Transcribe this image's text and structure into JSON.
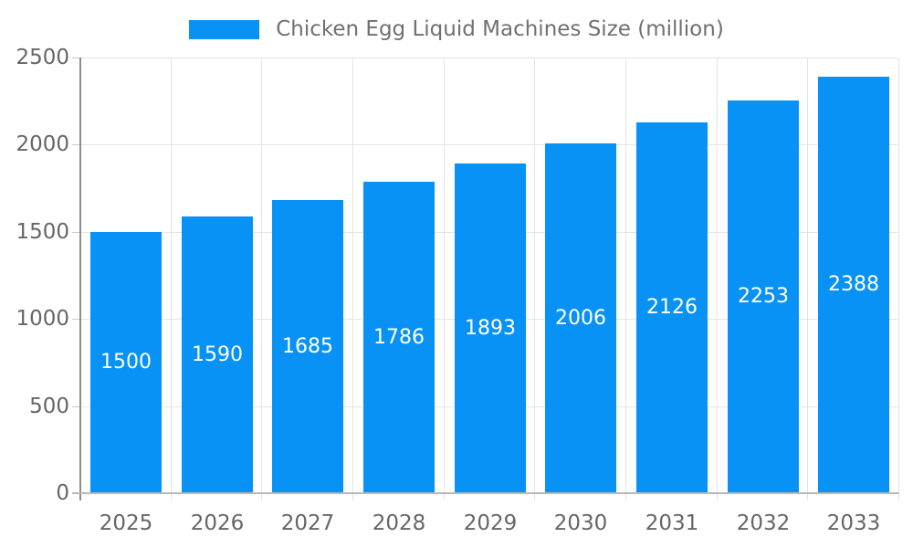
{
  "chart_data": {
    "type": "bar",
    "title": "",
    "legend": "Chicken Egg Liquid Machines Size (million)",
    "legend_position": "top-center",
    "categories": [
      "2025",
      "2026",
      "2027",
      "2028",
      "2029",
      "2030",
      "2031",
      "2032",
      "2033"
    ],
    "values": [
      1500,
      1590,
      1685,
      1786,
      1893,
      2006,
      2126,
      2253,
      2388
    ],
    "xlabel": "",
    "ylabel": "",
    "ylim": [
      0,
      2500
    ],
    "y_ticks": [
      0,
      500,
      1000,
      1500,
      2000,
      2500
    ],
    "grid": true,
    "bar_labels_inside": true,
    "colors": {
      "bar": "#0892f5",
      "bar_label": "#ffffff",
      "axis_text": "#666666",
      "legend_text": "#6e7072",
      "gridline": "#e4e4e4",
      "y_axis_line": "#8c8c8c",
      "zero_line": "#b9b9b9",
      "tick": "#c9c9c9",
      "background": "#ffffff"
    }
  }
}
